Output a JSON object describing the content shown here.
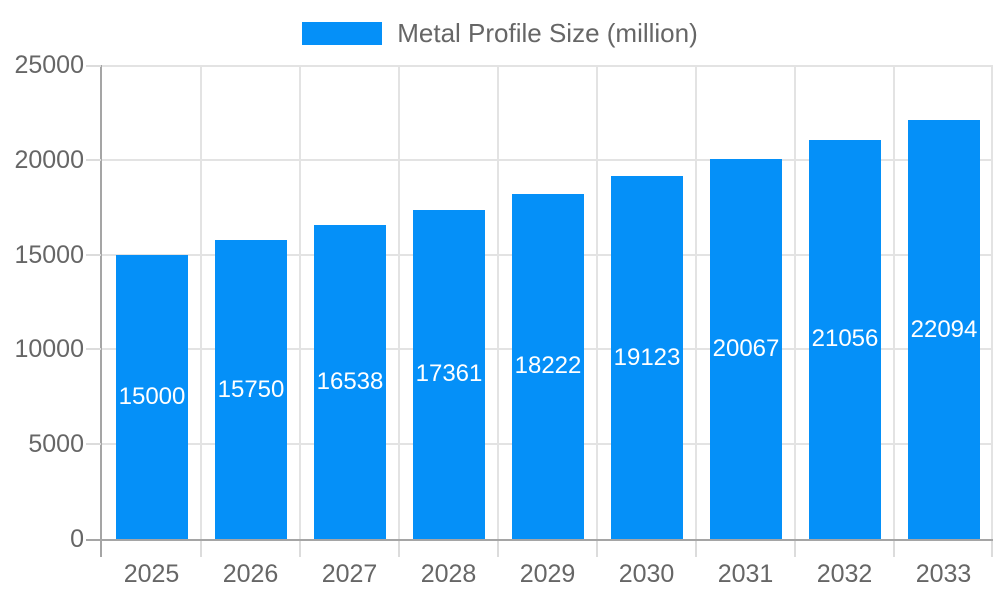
{
  "legend": {
    "label": "Metal Profile Size (million)"
  },
  "colors": {
    "bar": "#0590F8",
    "grid": "#e3e3e3",
    "axis": "#a5a5a5",
    "tick": "#dcdcdc",
    "axis_text": "#666666",
    "legend_text": "#666666",
    "bar_label_text": "#ffffff",
    "background": "#ffffff"
  },
  "chart_data": {
    "type": "bar",
    "title": "Metal Profile Size (million)",
    "series": [
      {
        "name": "Metal Profile Size (million)",
        "values": [
          15000,
          15750,
          16538,
          17361,
          18222,
          19123,
          20067,
          21056,
          22094
        ]
      }
    ],
    "categories": [
      "2025",
      "2026",
      "2027",
      "2028",
      "2029",
      "2030",
      "2031",
      "2032",
      "2033"
    ],
    "values": [
      15000,
      15750,
      16538,
      17361,
      18222,
      19123,
      20067,
      21056,
      22094
    ],
    "value_labels": [
      "15000",
      "15750",
      "16538",
      "17361",
      "18222",
      "19123",
      "20067",
      "21056",
      "22094"
    ],
    "xlabel": "",
    "ylabel": "",
    "ylim": [
      0,
      25000
    ],
    "yticks": [
      0,
      5000,
      10000,
      15000,
      20000,
      25000
    ],
    "grid": true,
    "legend_position": "top",
    "bar_value_label_position": "inside-center"
  }
}
